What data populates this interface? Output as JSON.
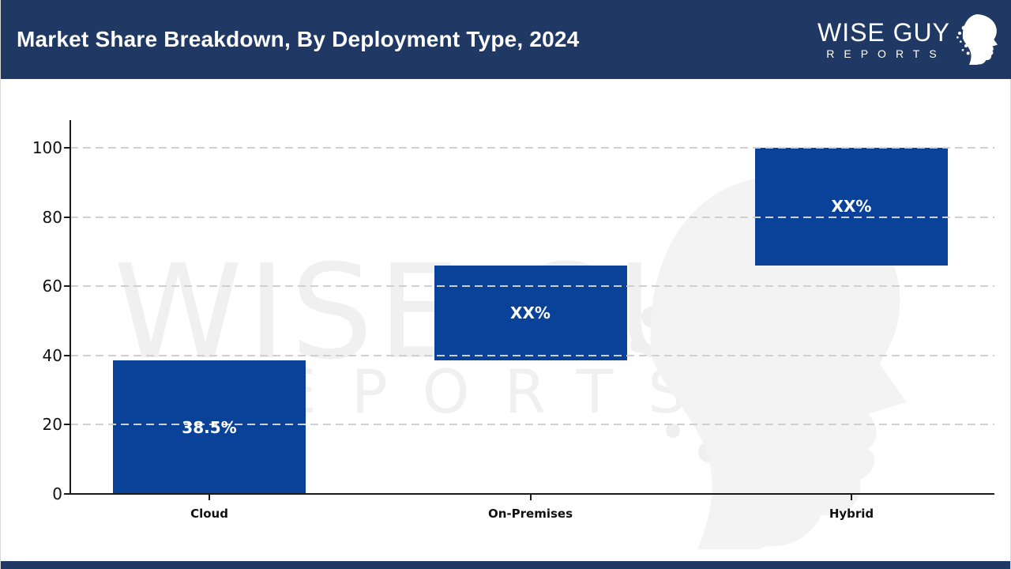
{
  "header": {
    "title": "Market Share Breakdown, By Deployment Type, 2024",
    "logo": {
      "primary": "WISE GUY",
      "secondary": "REPORTS"
    }
  },
  "watermark": {
    "primary": "WISE GUY",
    "secondary": "REPORTS"
  },
  "colors": {
    "header_bg": "#1F3864",
    "footer_bg": "#1F3864",
    "bar": "#0A429A",
    "grid": "#D0D0D0",
    "axis": "#1A1A1A",
    "bar_label": "#FFFFFF",
    "watermark": "#F0F0F0"
  },
  "chart_data": {
    "type": "bar",
    "subtype": "waterfall",
    "title": "Market Share Breakdown, By Deployment Type, 2024",
    "categories": [
      "Cloud",
      "On-Premises",
      "Hybrid"
    ],
    "segments": [
      {
        "category": "Cloud",
        "start": 0,
        "end": 38.5,
        "label": "38.5%"
      },
      {
        "category": "On-Premises",
        "start": 38.5,
        "end": 66,
        "label": "XX%"
      },
      {
        "category": "Hybrid",
        "start": 66,
        "end": 100,
        "label": "XX%"
      }
    ],
    "ylim": [
      0,
      100
    ],
    "yticks": [
      0,
      20,
      40,
      60,
      80,
      100
    ],
    "xlabel": "",
    "ylabel": "",
    "grid": "horizontal-dashed",
    "legend": "none"
  }
}
